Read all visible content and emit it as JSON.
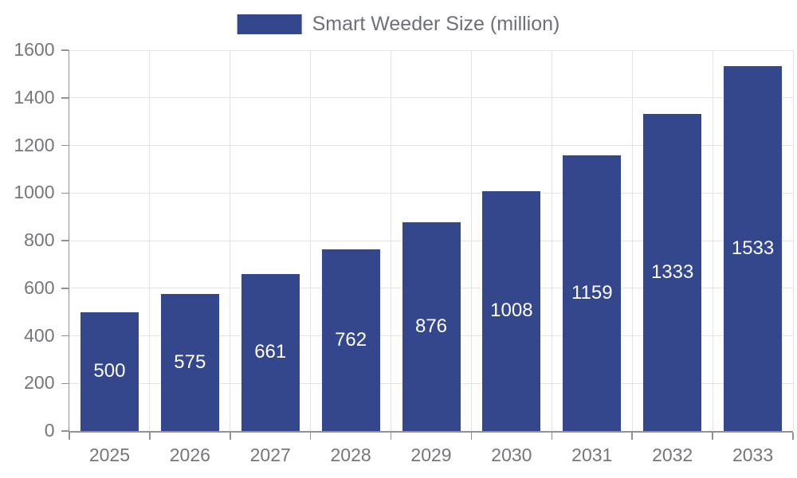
{
  "chart_data": {
    "type": "bar",
    "title": "Smart Weeder Size (million)",
    "series_name": "Smart Weeder Size (million)",
    "categories": [
      "2025",
      "2026",
      "2027",
      "2028",
      "2029",
      "2030",
      "2031",
      "2032",
      "2033"
    ],
    "values": [
      500,
      575,
      661,
      762,
      876,
      1008,
      1159,
      1333,
      1533
    ],
    "value_labels": [
      "500",
      "575",
      "661",
      "762",
      "876",
      "1008",
      "1159",
      "1333",
      "1533"
    ],
    "xlabel": "",
    "ylabel": "",
    "ylim": [
      0,
      1600
    ],
    "ytick_step": 200,
    "ytick_labels": [
      "0",
      "200",
      "400",
      "600",
      "800",
      "1000",
      "1200",
      "1400",
      "1600"
    ],
    "grid": true,
    "legend_position": "top-center"
  },
  "legend": {
    "label": "Smart Weeder Size (million)"
  },
  "colors": {
    "bar": "#35478C",
    "bar_value_text": "#ffffff",
    "gridline": "#e4e4e7",
    "axis": "#929296",
    "tick_text": "#75767a",
    "legend_text": "#6e7079",
    "background": "#ffffff"
  }
}
